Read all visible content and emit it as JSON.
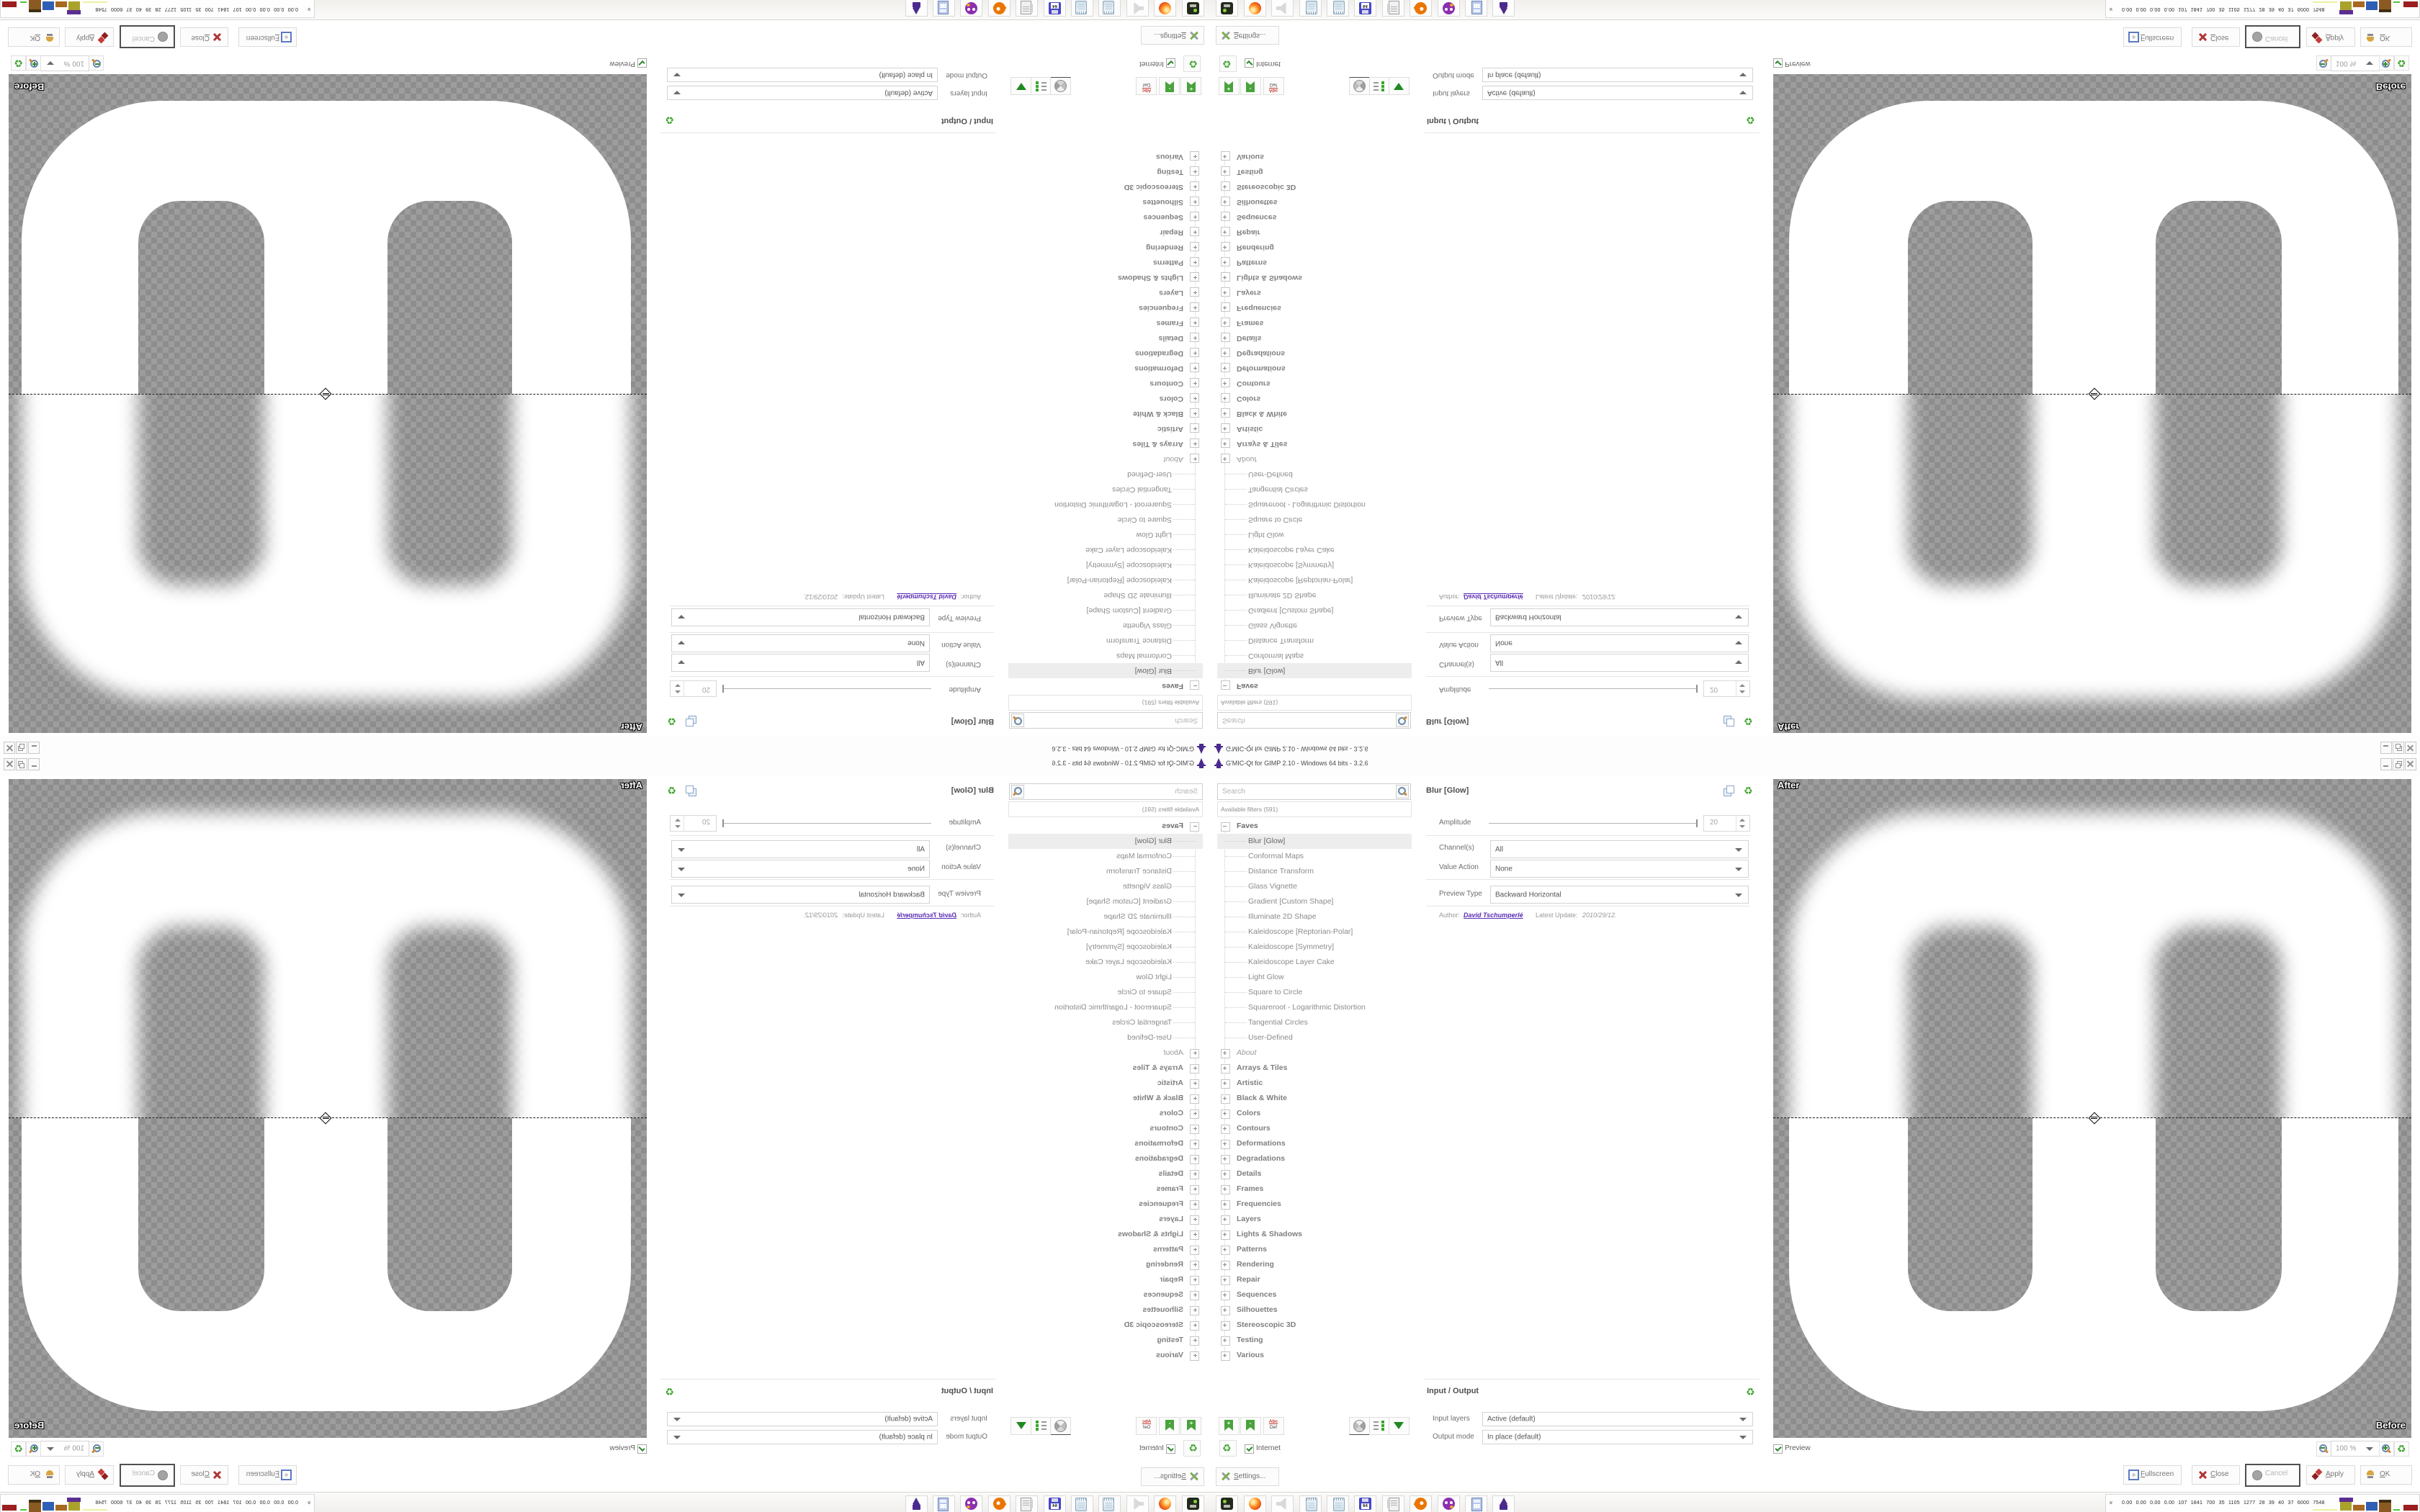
{
  "window": {
    "title": "G'MIC-Qt for GIMP 2.10 - Windows 64 bits - 3.2.6"
  },
  "left_panel": {
    "search_placeholder": "Search",
    "filters_header": "Available filters (591)",
    "tree": [
      {
        "label": "Faves",
        "kind": "root",
        "expanded": true
      },
      {
        "label": "Blur [Glow]",
        "kind": "item",
        "selected": true
      },
      {
        "label": "Conformal Maps",
        "kind": "item"
      },
      {
        "label": "Distance Transform",
        "kind": "item"
      },
      {
        "label": "Glass Vignette",
        "kind": "item"
      },
      {
        "label": "Gradient [Custom Shape]",
        "kind": "item"
      },
      {
        "label": "Illuminate 2D Shape",
        "kind": "item"
      },
      {
        "label": "Kaleidoscope [Reptorian-Polar]",
        "kind": "item"
      },
      {
        "label": "Kaleidoscope [Symmetry]",
        "kind": "item"
      },
      {
        "label": "Kaleidoscope Layer Cake",
        "kind": "item"
      },
      {
        "label": "Light Glow",
        "kind": "item"
      },
      {
        "label": "Square to Circle",
        "kind": "item"
      },
      {
        "label": "Squareroot - Logarithmic Distortion",
        "kind": "item"
      },
      {
        "label": "Tangential Circles",
        "kind": "item"
      },
      {
        "label": "User-Defined",
        "kind": "item"
      },
      {
        "label": "About",
        "kind": "cat",
        "italic": true
      },
      {
        "label": "Arrays & Tiles",
        "kind": "cat"
      },
      {
        "label": "Artistic",
        "kind": "cat"
      },
      {
        "label": "Black & White",
        "kind": "cat"
      },
      {
        "label": "Colors",
        "kind": "cat"
      },
      {
        "label": "Contours",
        "kind": "cat"
      },
      {
        "label": "Deformations",
        "kind": "cat"
      },
      {
        "label": "Degradations",
        "kind": "cat"
      },
      {
        "label": "Details",
        "kind": "cat"
      },
      {
        "label": "Frames",
        "kind": "cat"
      },
      {
        "label": "Frequencies",
        "kind": "cat"
      },
      {
        "label": "Layers",
        "kind": "cat"
      },
      {
        "label": "Lights & Shadows",
        "kind": "cat"
      },
      {
        "label": "Patterns",
        "kind": "cat"
      },
      {
        "label": "Rendering",
        "kind": "cat"
      },
      {
        "label": "Repair",
        "kind": "cat"
      },
      {
        "label": "Sequences",
        "kind": "cat"
      },
      {
        "label": "Silhouettes",
        "kind": "cat"
      },
      {
        "label": "Stereoscopic 3D",
        "kind": "cat"
      },
      {
        "label": "Testing",
        "kind": "cat"
      },
      {
        "label": "Various",
        "kind": "cat"
      }
    ],
    "fave_toolbar": {
      "add_sign": "+",
      "remove_sign": "-",
      "rename_top": "Abc",
      "rename_bottom": "Def"
    },
    "internet_label": "Internet",
    "settings": {
      "key": "S",
      "rest": "ettings..."
    }
  },
  "params": {
    "filter_title": "Blur [Glow]",
    "amplitude_label": "Amplitude",
    "amplitude_value": "20",
    "channels_label": "Channel(s)",
    "channels_value": "All",
    "value_action_label": "Value Action",
    "value_action_value": "None",
    "preview_type_label": "Preview Type",
    "preview_type_value": "Backward Horizontal",
    "author_prefix": "Author:",
    "author_link": "David Tschumperlé",
    "author_dot": ".",
    "update_label": "Latest Update:",
    "update_value": "2010/29/12."
  },
  "io": {
    "title": "Input / Output",
    "input_layers_label": "Input layers",
    "input_layers_value": "Active (default)",
    "output_mode_label": "Output mode",
    "output_mode_value": "In place (default)"
  },
  "preview": {
    "after_label": "After",
    "before_label": "Before",
    "checkbox_label": "Preview",
    "zoom_value": "100 %"
  },
  "actions": {
    "fullscreen": {
      "key": "F",
      "rest": "ullscreen"
    },
    "close": {
      "key": "C",
      "rest": "lose"
    },
    "cancel": {
      "key": "C",
      "rest": "ancel"
    },
    "apply": {
      "key": "A",
      "rest": "pply"
    },
    "ok": {
      "key": "O",
      "rest": "K"
    }
  },
  "taskbar": {
    "floppy_label": "64",
    "tray_chevron": "»",
    "tray_numbers": "0.00 0.00 0.00 0.00  107 1841 700  35  1105 1277  28  39  40  37  6000 7548",
    "icons": [
      "gimp-console",
      "firefox",
      "muted-app",
      "notepad",
      "notepad",
      "floppy-64",
      "scroll",
      "blender",
      "purple-mascot",
      "calculator",
      "gmic-wizard"
    ]
  },
  "icons": {
    "recycle_glyph": "♻"
  },
  "colors": {
    "accent_green": "#3fa32e",
    "link_purple": "#5b2db5",
    "wizard_purple": "#4b2a8f",
    "checker_dark": "#8d8d8d",
    "checker_light": "#9d9d9d",
    "tray_blocks": [
      "#eef0a0",
      "#a9a32a",
      "#5c2d91",
      "#a8681f",
      "#2f5fb5",
      "#8a5a22",
      "#55c040",
      "#9b1f1f"
    ]
  }
}
